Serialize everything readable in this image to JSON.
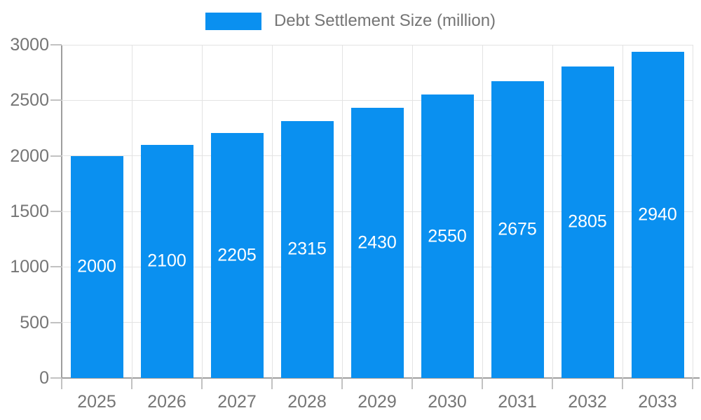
{
  "legend": {
    "label": "Debt Settlement Size (million)"
  },
  "chart_data": {
    "type": "bar",
    "title": "",
    "series_name": "Debt Settlement Size (million)",
    "categories": [
      "2025",
      "2026",
      "2027",
      "2028",
      "2029",
      "2030",
      "2031",
      "2032",
      "2033"
    ],
    "values": [
      2000,
      2100,
      2205,
      2315,
      2430,
      2550,
      2675,
      2805,
      2940
    ],
    "xlabel": "",
    "ylabel": "",
    "ylim": [
      0,
      3000
    ],
    "ytick_step": 500,
    "grid": true,
    "legend_position": "top",
    "value_labels": "inside-center",
    "colors": {
      "bar": "#0A90F0",
      "bar_value_text": "#ffffff",
      "axis_line": "#9e9e9e",
      "tick": "#c2c2c2",
      "gridline": "#e3e3e3",
      "axis_text": "#757575",
      "legend_text": "#757575",
      "background": "#ffffff"
    }
  }
}
